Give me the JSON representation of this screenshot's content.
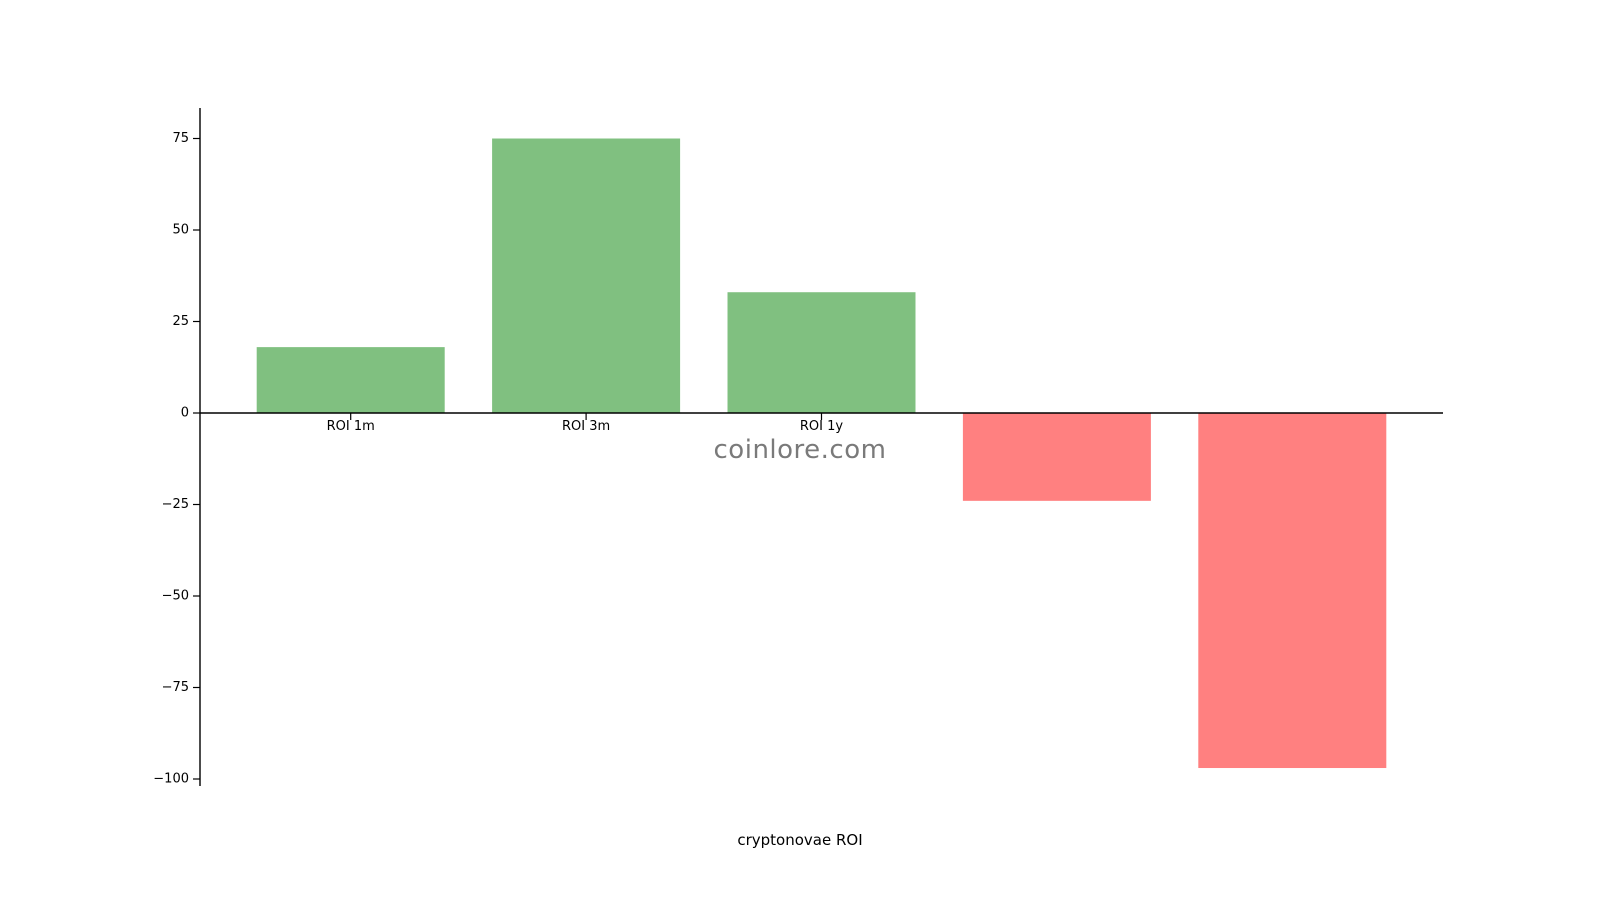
{
  "page": {
    "background": "#ffffff"
  },
  "chart_data": {
    "type": "bar",
    "title": "cryptonovae ROI",
    "watermark": "coinlore.com",
    "categories": [
      "ROI 1m",
      "ROI 3m",
      "ROI 1y",
      "",
      ""
    ],
    "values": [
      18,
      75,
      33,
      -24,
      -97
    ],
    "series": [
      {
        "name": "ROI",
        "values": [
          18,
          75,
          33,
          -24,
          -97
        ]
      }
    ],
    "bar_colors": [
      "#80c080",
      "#80c080",
      "#80c080",
      "#ff8080",
      "#ff8080"
    ],
    "positive_color": "#80c080",
    "negative_color": "#ff8080",
    "yticks": [
      75,
      50,
      25,
      0,
      -25,
      -50,
      -75,
      -100
    ],
    "ytick_labels": [
      "75",
      "50",
      "25",
      "0",
      "−25",
      "−50",
      "−75",
      "−100"
    ],
    "ylim": [
      -102,
      83.5
    ],
    "xlabel": "",
    "ylabel": "",
    "grid": false,
    "legend_position": "none",
    "axis_color": "#000000",
    "tick_text_color": "#000000",
    "watermark_color": "#7a7a7a"
  }
}
